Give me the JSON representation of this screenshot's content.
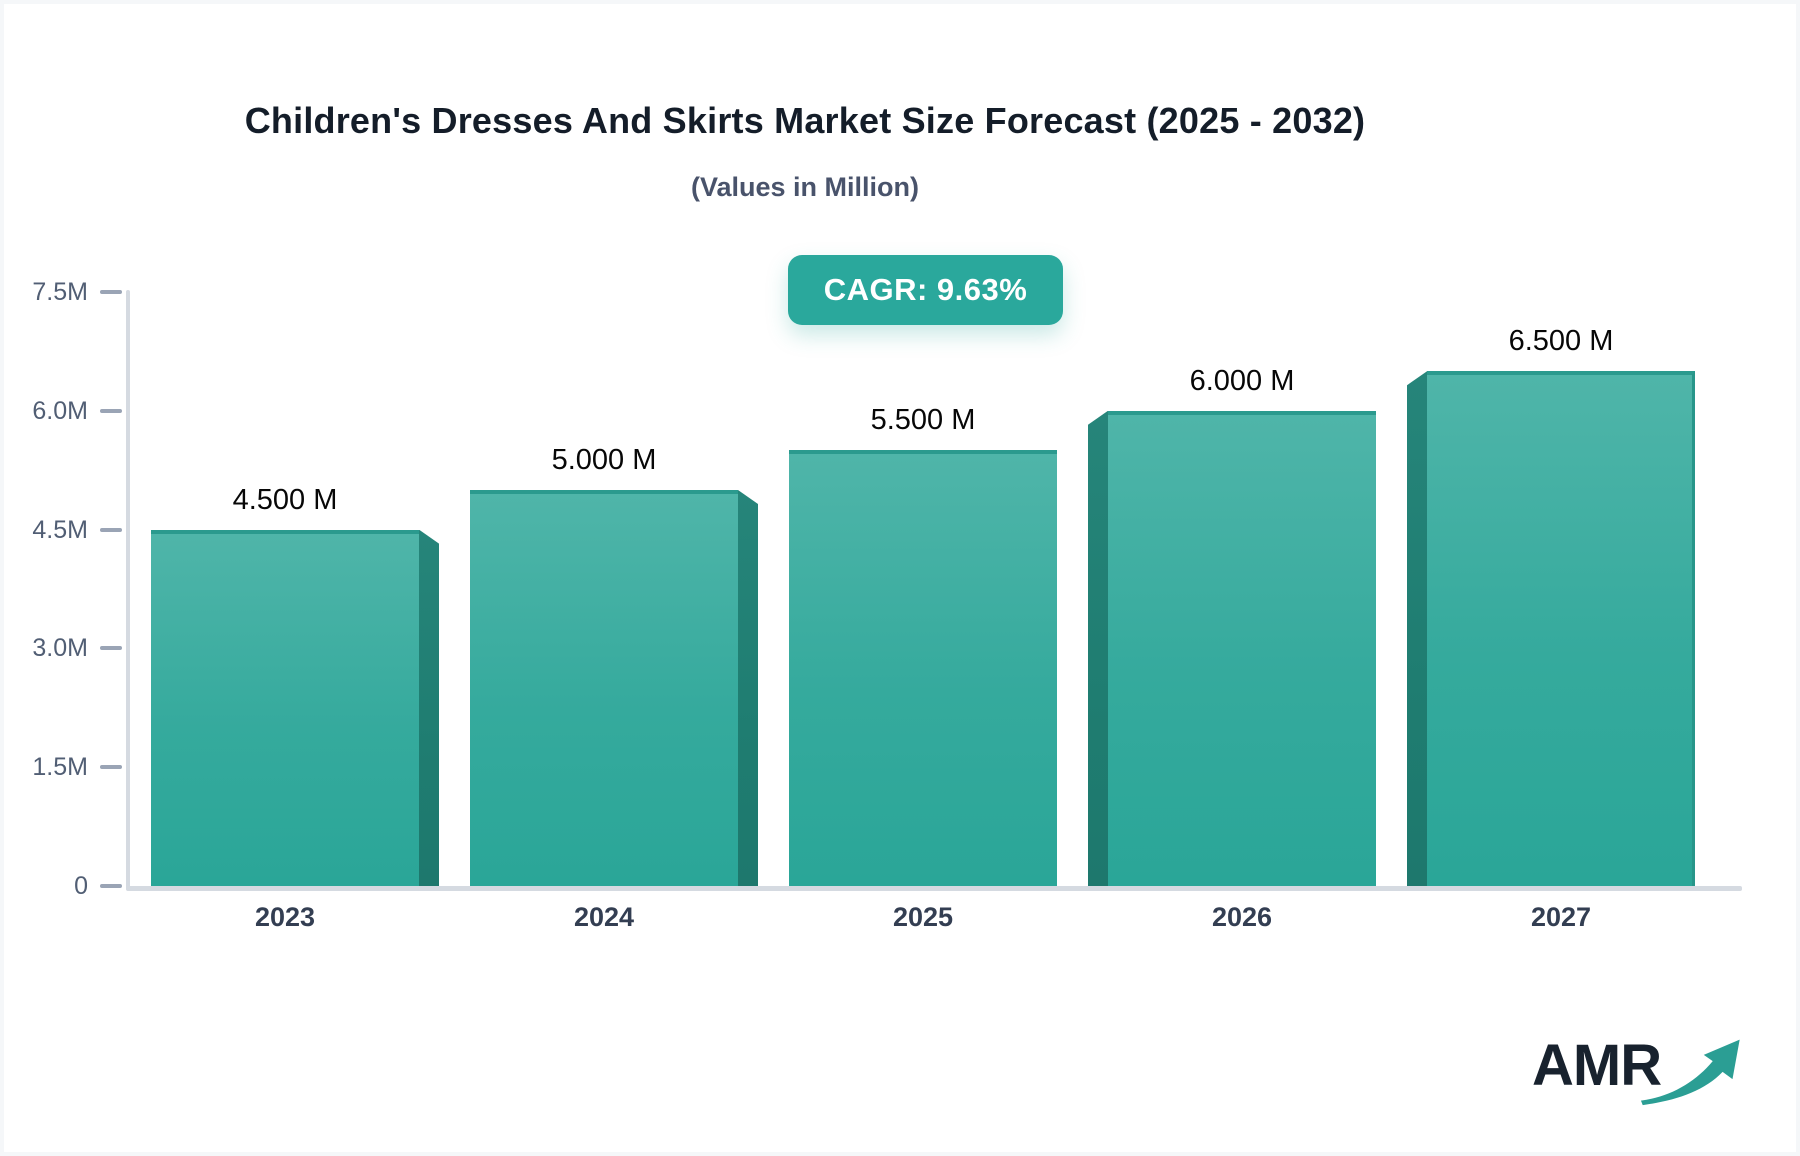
{
  "header": {
    "title": "Children's Dresses And Skirts Market Size Forecast (2025 - 2032)",
    "subtitle": "(Values in Million)"
  },
  "badge": {
    "label": "CAGR: 9.63%"
  },
  "logo": {
    "text": "AMR",
    "icon": "growth-arrow-icon"
  },
  "colors": {
    "accent_teal": "#2aa89c",
    "bar_gradient_top": "#4fb5a9",
    "bar_gradient_bottom": "#2aa698",
    "bar_side_face": "#1f7d71",
    "bar_top_edge": "#2b9a8e",
    "axis_line": "#d5dae1",
    "y_tick_text": "#515e74",
    "x_label_text": "#333e52",
    "title_text": "#141d29",
    "subtitle_text": "#49536b",
    "value_label_text": "#070707",
    "logo_navy": "#18222e",
    "logo_teal": "#2b9e94"
  },
  "chart_data": {
    "type": "bar",
    "title": "Children's Dresses And Skirts Market Size Forecast (2025 - 2032)",
    "subtitle": "(Values in Million)",
    "unit": "Million",
    "cagr": "9.63%",
    "categories": [
      "2023",
      "2024",
      "2025",
      "2026",
      "2027"
    ],
    "values": [
      4.5,
      5.0,
      5.5,
      6.0,
      6.5
    ],
    "bar_labels": [
      "4.500 M",
      "5.000 M",
      "5.500 M",
      "6.000 M",
      "6.500 M"
    ],
    "ylim": [
      0,
      7.5
    ],
    "yticks": [
      {
        "label": "7.5M",
        "value": 7.5
      },
      {
        "label": "6.0M",
        "value": 6.0
      },
      {
        "label": "4.5M",
        "value": 4.5
      },
      {
        "label": "3.0M",
        "value": 3.0
      },
      {
        "label": "1.5M",
        "value": 1.5
      },
      {
        "label": "0",
        "value": 0
      }
    ],
    "grid": false,
    "legend": false
  }
}
